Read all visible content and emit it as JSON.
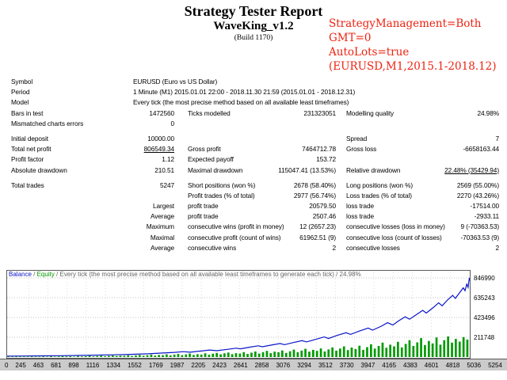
{
  "header": {
    "title": "Strategy Tester Report",
    "subtitle": "WaveKing_v1.2",
    "build": "(Build 1170)"
  },
  "annotations": {
    "color": "#ee2211",
    "lines": [
      "StrategyManagement=Both",
      "GMT=0",
      "AutoLots=true",
      "(EURUSD,M1,2015.1-2018.12)"
    ]
  },
  "report": {
    "rows": [
      {
        "c1": "Symbol",
        "spanv": "EURUSD (Euro vs US Dollar)"
      },
      {
        "c1": "Period",
        "spanv": "1 Minute (M1) 2015.01.01 22:00 - 2018.11.30 21:59 (2015.01.01 - 2018.12.31)"
      },
      {
        "c1": "Model",
        "spanv": "Every tick (the most precise method based on all available least timeframes)"
      },
      {
        "c1": "Bars in test",
        "v1": "1472560",
        "l2": "Ticks modelled",
        "v2": "231323051",
        "l3": "Modelling quality",
        "v3": "24.98%"
      },
      {
        "c1": "Mismatched charts errors",
        "v1": "0"
      },
      {
        "gap": true,
        "c1": "Initial deposit",
        "v1": "10000.00",
        "l3": "Spread",
        "v3": "7"
      },
      {
        "c1": "Total net profit",
        "v1": "806549.34",
        "v1u": true,
        "l2": "Gross profit",
        "v2": "7464712.78",
        "l3": "Gross loss",
        "v3": "-6658163.44"
      },
      {
        "c1": "Profit factor",
        "v1": "1.12",
        "l2": "Expected payoff",
        "v2": "153.72"
      },
      {
        "c1": "Absolute drawdown",
        "v1": "210.51",
        "l2": "Maximal drawdown",
        "v2": "115047.41 (13.53%)",
        "l3": "Relative drawdown",
        "v3": "22.48% (35429.94)",
        "v3u": true
      },
      {
        "gap": true,
        "c1": "Total trades",
        "v1": "5247",
        "l2": "Short positions (won %)",
        "v2": "2678 (58.40%)",
        "l3": "Long positions (won %)",
        "v3": "2569 (55.00%)"
      },
      {
        "l2": "Profit trades (% of total)",
        "v2": "2977 (56.74%)",
        "l3": "Loss trades (% of total)",
        "v3": "2270 (43.26%)"
      },
      {
        "v1": "Largest",
        "l2": "profit trade",
        "v2": "20579.50",
        "l3": "loss trade",
        "v3": "-17514.00"
      },
      {
        "v1": "Average",
        "l2": "profit trade",
        "v2": "2507.46",
        "l3": "loss trade",
        "v3": "-2933.11"
      },
      {
        "v1": "Maximum",
        "l2": "consecutive wins (profit in money)",
        "v2": "12 (2657.23)",
        "l3": "consecutive losses (loss in money)",
        "v3": "9 (-70363.53)"
      },
      {
        "v1": "Maximal",
        "l2": "consecutive profit (count of wins)",
        "v2": "61962.51 (9)",
        "l3": "consecutive loss (count of losses)",
        "v3": "-70363.53 (9)"
      },
      {
        "v1": "Average",
        "l2": "consecutive wins",
        "v2": "2",
        "l3": "consecutive losses",
        "v3": "2"
      }
    ]
  },
  "chart": {
    "legend_balance": "Balance",
    "legend_sep": " / ",
    "legend_equity": "Equity",
    "legend_desc": " / Every tick (the most precise method based on all available least timeframes to generate each tick) / 24.98%"
  },
  "chart_data": {
    "type": "line",
    "title": "Balance / Equity / Every tick (the most precise method based on all available least timeframes to generate each tick) / 24.98%",
    "legend_position": "top-left",
    "grid": true,
    "x_max": 5254,
    "y_max": 846990,
    "y_ticks": [
      846990,
      635243,
      423496,
      211748
    ],
    "x_ticks": [
      0,
      245,
      463,
      681,
      898,
      1116,
      1334,
      1552,
      1769,
      1987,
      2205,
      2423,
      2641,
      2858,
      3076,
      3294,
      3512,
      3730,
      3947,
      4165,
      4383,
      4601,
      4818,
      5036,
      5254
    ],
    "balance_color": "#0a16c8",
    "lots_color": "#009a00",
    "balance_series": [
      [
        0,
        10000
      ],
      [
        200,
        11000
      ],
      [
        400,
        12500
      ],
      [
        600,
        14500
      ],
      [
        800,
        17000
      ],
      [
        1000,
        20000
      ],
      [
        1200,
        24000
      ],
      [
        1400,
        29000
      ],
      [
        1600,
        35000
      ],
      [
        1750,
        42000
      ],
      [
        1900,
        50000
      ],
      [
        2000,
        58000
      ],
      [
        2080,
        52000
      ],
      [
        2200,
        64000
      ],
      [
        2300,
        75000
      ],
      [
        2380,
        68000
      ],
      [
        2500,
        82000
      ],
      [
        2600,
        95000
      ],
      [
        2650,
        88000
      ],
      [
        2750,
        105000
      ],
      [
        2850,
        120000
      ],
      [
        2900,
        110000
      ],
      [
        3000,
        128000
      ],
      [
        3100,
        145000
      ],
      [
        3150,
        132000
      ],
      [
        3250,
        155000
      ],
      [
        3350,
        175000
      ],
      [
        3400,
        162000
      ],
      [
        3500,
        188000
      ],
      [
        3600,
        215000
      ],
      [
        3650,
        198000
      ],
      [
        3750,
        232000
      ],
      [
        3850,
        260000
      ],
      [
        3900,
        242000
      ],
      [
        4000,
        278000
      ],
      [
        4100,
        310000
      ],
      [
        4150,
        288000
      ],
      [
        4250,
        330000
      ],
      [
        4320,
        368000
      ],
      [
        4380,
        342000
      ],
      [
        4450,
        390000
      ],
      [
        4520,
        430000
      ],
      [
        4570,
        405000
      ],
      [
        4650,
        455000
      ],
      [
        4720,
        500000
      ],
      [
        4760,
        470000
      ],
      [
        4840,
        530000
      ],
      [
        4900,
        580000
      ],
      [
        4940,
        548000
      ],
      [
        5000,
        610000
      ],
      [
        5060,
        660000
      ],
      [
        5090,
        628000
      ],
      [
        5140,
        690000
      ],
      [
        5180,
        740000
      ],
      [
        5200,
        710000
      ],
      [
        5220,
        780000
      ],
      [
        5235,
        745000
      ],
      [
        5245,
        820000
      ],
      [
        5250,
        846990
      ],
      [
        5254,
        816549
      ]
    ],
    "lot_bars": [
      0.02,
      0.01,
      0.03,
      0.02,
      0.02,
      0.01,
      0.03,
      0.02,
      0.02,
      0.03,
      0.02,
      0.04,
      0.02,
      0.03,
      0.05,
      0.03,
      0.04,
      0.02,
      0.05,
      0.03,
      0.04,
      0.06,
      0.03,
      0.05,
      0.07,
      0.04,
      0.06,
      0.08,
      0.05,
      0.07,
      0.06,
      0.09,
      0.05,
      0.08,
      0.1,
      0.06,
      0.09,
      0.12,
      0.07,
      0.1,
      0.09,
      0.13,
      0.08,
      0.12,
      0.15,
      0.09,
      0.13,
      0.17,
      0.1,
      0.14,
      0.12,
      0.18,
      0.11,
      0.16,
      0.2,
      0.13,
      0.18,
      0.22,
      0.14,
      0.19,
      0.17,
      0.24,
      0.15,
      0.21,
      0.27,
      0.17,
      0.24,
      0.3,
      0.19,
      0.26,
      0.23,
      0.32,
      0.2,
      0.28,
      0.36,
      0.23,
      0.31,
      0.4,
      0.26,
      0.35,
      0.3,
      0.42,
      0.27,
      0.37,
      0.47,
      0.31,
      0.41,
      0.52,
      0.34,
      0.46,
      0.39,
      0.55,
      0.35,
      0.48,
      0.62,
      0.41,
      0.54,
      0.7,
      0.45,
      0.6,
      0.52,
      0.74,
      0.47,
      0.64,
      0.82,
      0.54,
      0.71,
      0.92,
      0.58,
      0.78,
      0.66,
      0.95,
      0.6,
      0.82,
      1.0,
      0.7,
      0.88,
      0.75,
      0.97,
      0.85
    ]
  }
}
